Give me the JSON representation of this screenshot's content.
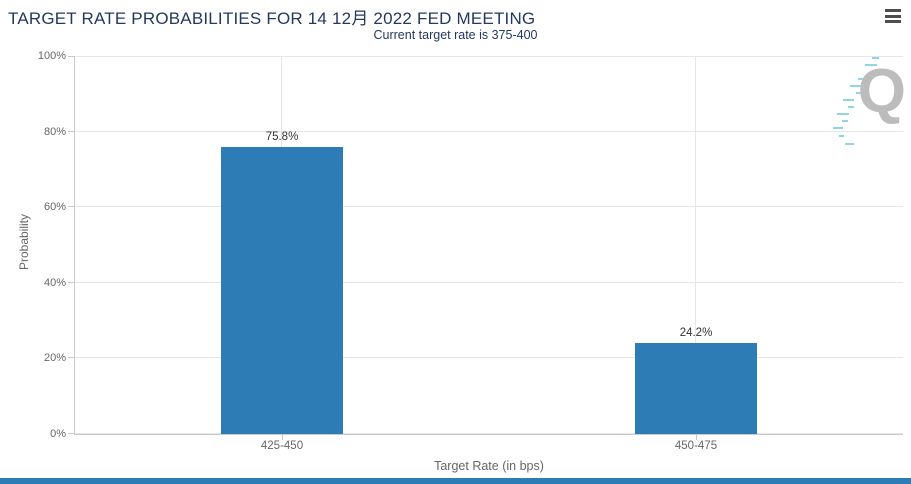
{
  "header": {
    "title": "TARGET RATE PROBABILITIES FOR 14 12月 2022 FED MEETING",
    "subtitle": "Current target rate is 375-400",
    "menu_icon": "hamburger-menu-icon"
  },
  "watermark": {
    "letter": "Q"
  },
  "chart_data": {
    "type": "bar",
    "title": "TARGET RATE PROBABILITIES FOR 14 12月 2022 FED MEETING",
    "subtitle": "Current target rate is 375-400",
    "categories": [
      "425-450",
      "450-475"
    ],
    "values": [
      75.8,
      24.2
    ],
    "value_labels": [
      "75.8%",
      "24.2%"
    ],
    "xlabel": "Target Rate (in bps)",
    "ylabel": "Probability",
    "ylim": [
      0,
      100
    ],
    "yticks": [
      0,
      20,
      40,
      60,
      80,
      100
    ],
    "ytick_labels": [
      "0%",
      "20%",
      "40%",
      "60%",
      "80%",
      "100%"
    ],
    "grid": true,
    "legend_position": "none"
  },
  "colors": {
    "title_text": "#24395e",
    "bar": "#2d7cb5",
    "grid": "#e6e6e6",
    "axis": "#c9c9c9",
    "axis_label": "#666666",
    "data_label": "#333333",
    "footer_bar": "#2e7cb5",
    "watermark_q": "#bcbcbc",
    "watermark_dash": "#90d5e6"
  }
}
